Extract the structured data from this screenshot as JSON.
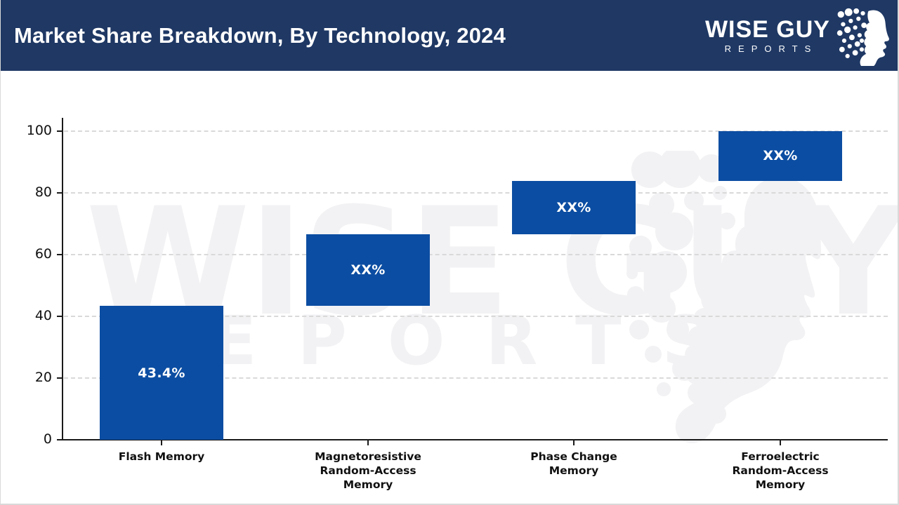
{
  "header": {
    "title": "Market Share Breakdown, By Technology, 2024",
    "logo": {
      "line1": "WISE GUY",
      "line2": "REPORTS"
    }
  },
  "watermark": {
    "line1": "WISE GUY",
    "line2": "REPORTS"
  },
  "chart_data": {
    "type": "bar",
    "subtype": "waterfall",
    "title": "Market Share Breakdown, By Technology, 2024",
    "categories": [
      "Flash Memory",
      "Magnetoresistive Random-Access Memory",
      "Phase Change Memory",
      "Ferroelectric Random-Access Memory"
    ],
    "categories_lines": [
      "Flash Memory",
      "Magnetoresistive\nRandom-Access\nMemory",
      "Phase Change\nMemory",
      "Ferroelectric\nRandom-Access\nMemory"
    ],
    "bars": [
      {
        "label": "43.4%",
        "start": 0,
        "end": 43.4,
        "masked": false
      },
      {
        "label": "XX%",
        "start": 43.4,
        "end": 66.6,
        "masked": true
      },
      {
        "label": "XX%",
        "start": 66.6,
        "end": 83.9,
        "masked": true
      },
      {
        "label": "XX%",
        "start": 83.9,
        "end": 100,
        "masked": true
      }
    ],
    "ylim": [
      0,
      100
    ],
    "yticks": [
      0,
      20,
      40,
      60,
      80,
      100
    ],
    "grid": "horizontal-dashed",
    "bar_color": "#0b4da2",
    "value_label_color": "#ffffff",
    "header_color": "#1f3864",
    "gridline_color": "#d9d9d9"
  }
}
